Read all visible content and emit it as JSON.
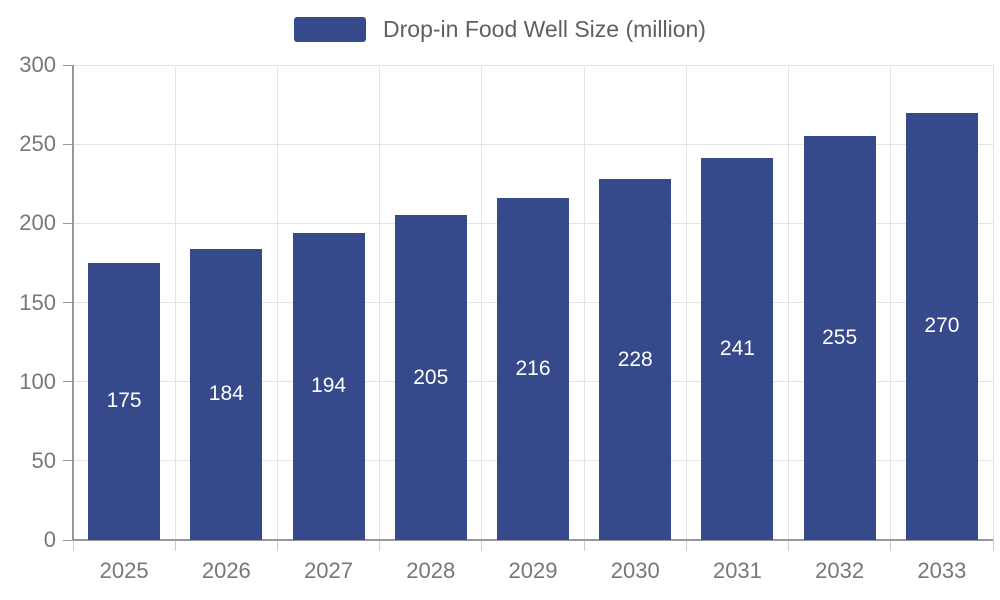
{
  "legend": {
    "label": "Drop-in Food Well Size (million)"
  },
  "chart_data": {
    "type": "bar",
    "title": "Drop-in Food Well Size (million)",
    "series_name": "Drop-in Food Well Size (million)",
    "categories": [
      "2025",
      "2026",
      "2027",
      "2028",
      "2029",
      "2030",
      "2031",
      "2032",
      "2033"
    ],
    "values": [
      175,
      184,
      194,
      205,
      216,
      228,
      241,
      255,
      270
    ],
    "xlabel": "",
    "ylabel": "",
    "ylim": [
      0,
      300
    ],
    "y_ticks": [
      0,
      50,
      100,
      150,
      200,
      250,
      300
    ],
    "grid": true,
    "legend_position": "top-center",
    "value_labels": "centered-inside-white",
    "colors": {
      "bar": "#36498B",
      "value_label": "#ffffff",
      "axis_text": "#76777D",
      "legend_text": "#5E6066",
      "grid_line": "#E3E4E8",
      "axis_line": "#96979C",
      "x_tick": "#C9CCD4",
      "background": "#FFFFFF"
    }
  }
}
